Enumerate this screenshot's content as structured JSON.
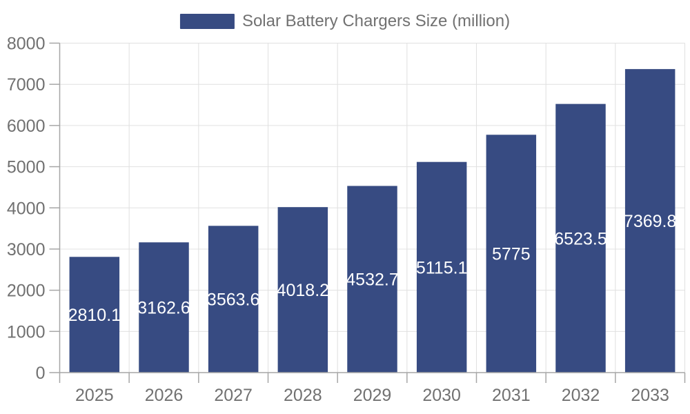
{
  "legend": {
    "label": "Solar Battery Chargers Size (million)"
  },
  "chart_data": {
    "type": "bar",
    "title": "Solar Battery Chargers Size (million)",
    "series_name": "Solar Battery Chargers Size (million)",
    "categories": [
      "2025",
      "2026",
      "2027",
      "2028",
      "2029",
      "2030",
      "2031",
      "2032",
      "2033"
    ],
    "values": [
      2810.1,
      3162.6,
      3563.6,
      4018.2,
      4532.7,
      5115.1,
      5775,
      6523.5,
      7369.8
    ],
    "xlabel": "",
    "ylabel": "",
    "ylim": [
      0,
      8000
    ],
    "ytick_interval": 1000,
    "yticks": [
      0,
      1000,
      2000,
      3000,
      4000,
      5000,
      6000,
      7000,
      8000
    ],
    "grid": true,
    "legend_position": "top-center",
    "bar_label_position": "inside-center",
    "colors": {
      "bar": "#374b82",
      "bar_label": "#ffffff",
      "axis_line": "#a6a6a6",
      "tick_line": "#a6a6a6",
      "grid_line": "#e0e0e0",
      "tick_label": "#717171",
      "legend_text": "#717171",
      "background": "#ffffff"
    }
  }
}
